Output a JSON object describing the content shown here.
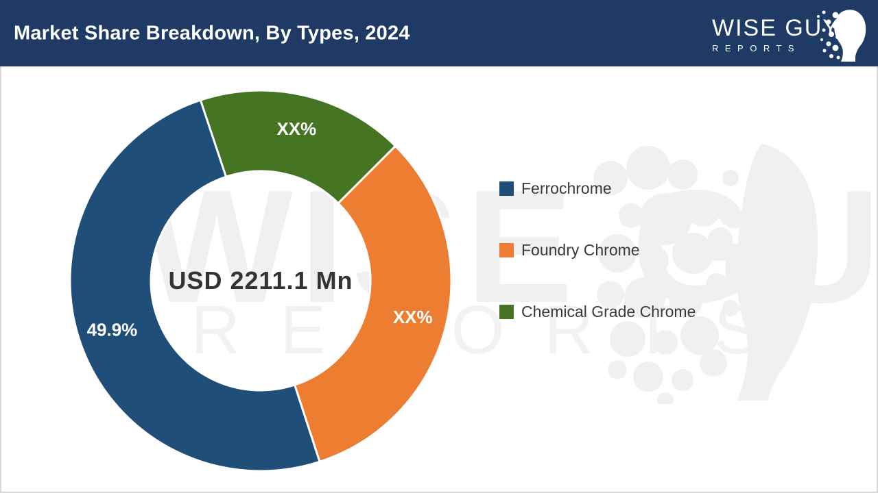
{
  "header": {
    "title": "Market Share Breakdown, By Types, 2024",
    "logo": {
      "line1": "WISE GUY",
      "line2": "REPORTS"
    }
  },
  "watermark": {
    "line1": "WISE GUY",
    "line2": "REPORTS"
  },
  "chart_data": {
    "type": "pie",
    "subtype": "donut",
    "title": "Market Share Breakdown, By Types, 2024",
    "center_label": "USD 2211.1 Mn",
    "start_angle_deg": -18.4,
    "legend_position": "right",
    "slices": [
      {
        "label": "Chemical Grade Chrome",
        "value_label": "XX%",
        "percent": 17.6,
        "color": "#457423"
      },
      {
        "label": "Foundry Chrome",
        "value_label": "XX%",
        "percent": 32.5,
        "color": "#ed7d31"
      },
      {
        "label": "Ferrochrome",
        "value_label": "49.9%",
        "percent": 49.9,
        "color": "#1f4e79"
      }
    ]
  },
  "legend": {
    "items": [
      {
        "label": "Ferrochrome",
        "color": "#1f4e79"
      },
      {
        "label": "Foundry Chrome",
        "color": "#ed7d31"
      },
      {
        "label": "Chemical Grade Chrome",
        "color": "#457423"
      }
    ]
  },
  "colors": {
    "header_bg": "#1f3a64",
    "center_text": "#333333",
    "legend_text": "#3a3a3a",
    "watermark": "#f0f0f0",
    "frame_border": "#d9d9d9"
  }
}
